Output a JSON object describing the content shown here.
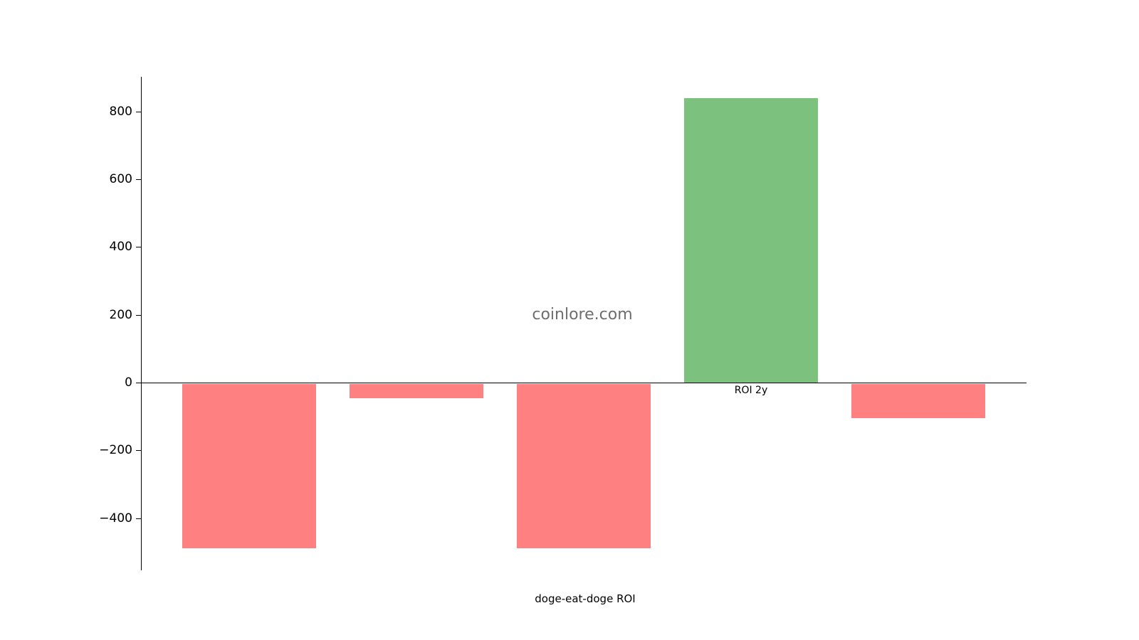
{
  "page": {
    "background_color": "#ffffff",
    "watermark": "coinlore.com",
    "watermark_color": "#6e6e6e"
  },
  "chart_data": {
    "type": "bar",
    "title": "",
    "xlabel": "doge-eat-doge ROI",
    "ylabel": "",
    "categories": [
      "",
      "",
      "",
      "ROI 2y",
      ""
    ],
    "values": [
      -485,
      -42,
      -485,
      840,
      -102
    ],
    "bar_colors": [
      "#ff8080",
      "#ff8080",
      "#ff8080",
      "#7cc17e",
      "#ff8080"
    ],
    "positive_color": "#7cc17e",
    "negative_color": "#ff8080",
    "y_tick_values": [
      800,
      600,
      400,
      200,
      0,
      -200,
      -400
    ],
    "y_tick_labels": [
      "800",
      "600",
      "400",
      "200",
      "0",
      "−200",
      "−400"
    ],
    "ylim": [
      -552,
      905
    ],
    "grid": false,
    "legend": "none",
    "axis_color": "#000000",
    "note_visible_x_tick_labels": [
      "ROI 2y"
    ]
  }
}
